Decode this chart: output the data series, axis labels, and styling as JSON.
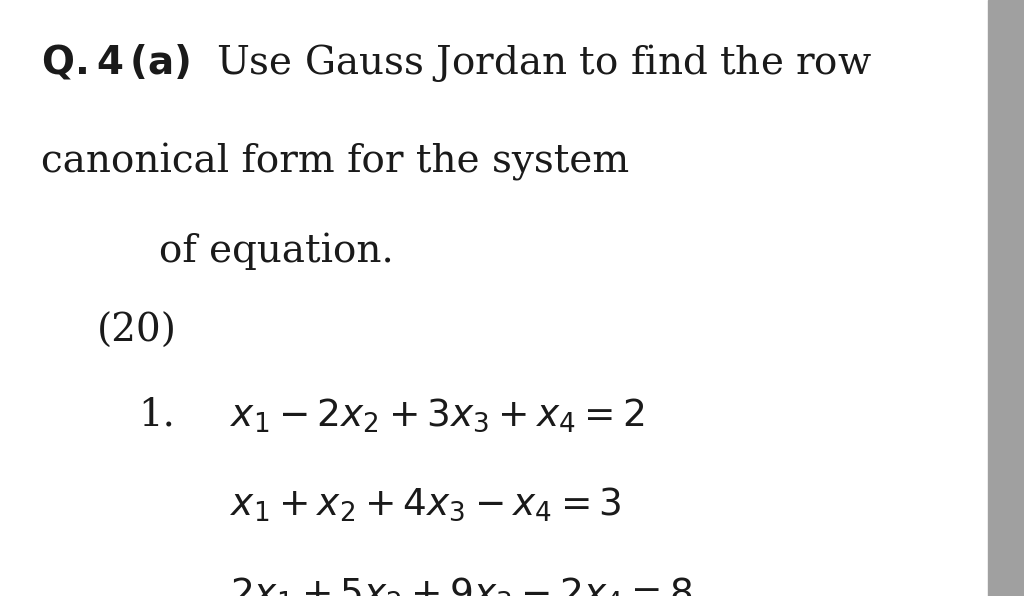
{
  "bg_color": "#ffffff",
  "right_bar_color": "#a0a0a0",
  "font_size_title": 28,
  "font_size_eq": 27,
  "text_color": "#1a1a1a"
}
